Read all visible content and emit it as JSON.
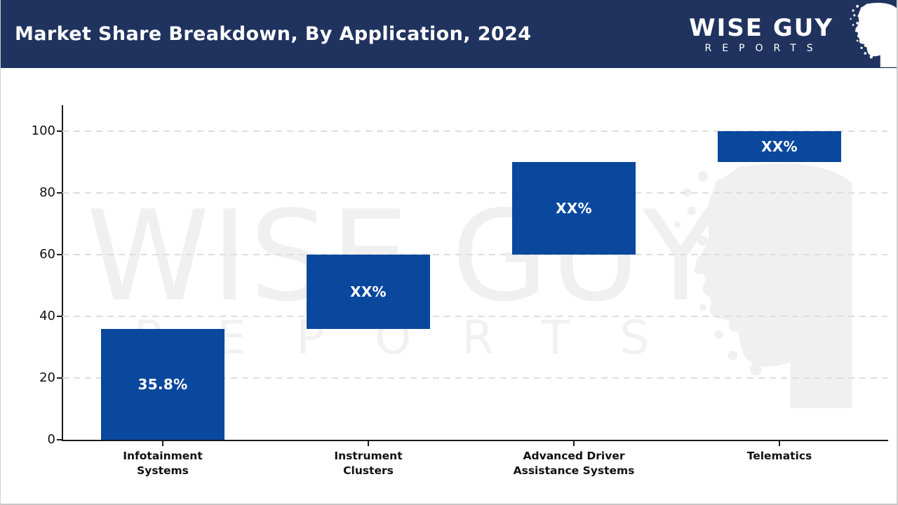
{
  "header": {
    "title": "Market Share Breakdown, By Application, 2024",
    "logo": {
      "line1": "WISE GUY",
      "line2": "REPORTS"
    },
    "bg_color": "#20335F"
  },
  "watermark": {
    "line1": "WISE GUY",
    "line2": "REPORTS"
  },
  "chart_data": {
    "type": "bar",
    "subtype": "waterfall",
    "title": "Market Share Breakdown, By Application, 2024",
    "categories": [
      "Infotainment Systems",
      "Instrument Clusters",
      "Advanced Driver Assistance Systems",
      "Telematics"
    ],
    "segments": [
      {
        "category": "Infotainment Systems",
        "label_lines": [
          "Infotainment",
          "Systems"
        ],
        "start": 0,
        "end": 35.8,
        "value_label": "35.8%"
      },
      {
        "category": "Instrument Clusters",
        "label_lines": [
          "Instrument",
          "Clusters"
        ],
        "start": 35.8,
        "end": 60,
        "value_label": "XX%"
      },
      {
        "category": "Advanced Driver Assistance Systems",
        "label_lines": [
          "Advanced Driver",
          "Assistance Systems"
        ],
        "start": 60,
        "end": 90,
        "value_label": "XX%"
      },
      {
        "category": "Telematics",
        "label_lines": [
          "Telematics"
        ],
        "start": 90,
        "end": 100,
        "value_label": "XX%"
      }
    ],
    "xlabel": "",
    "ylabel": "",
    "ylim": [
      0,
      100
    ],
    "yticks": [
      0,
      20,
      40,
      60,
      80,
      100
    ],
    "grid": "horizontal-dashed",
    "legend": "none",
    "bar_color": "#0A489D",
    "bar_label_color": "#FFFFFF"
  }
}
